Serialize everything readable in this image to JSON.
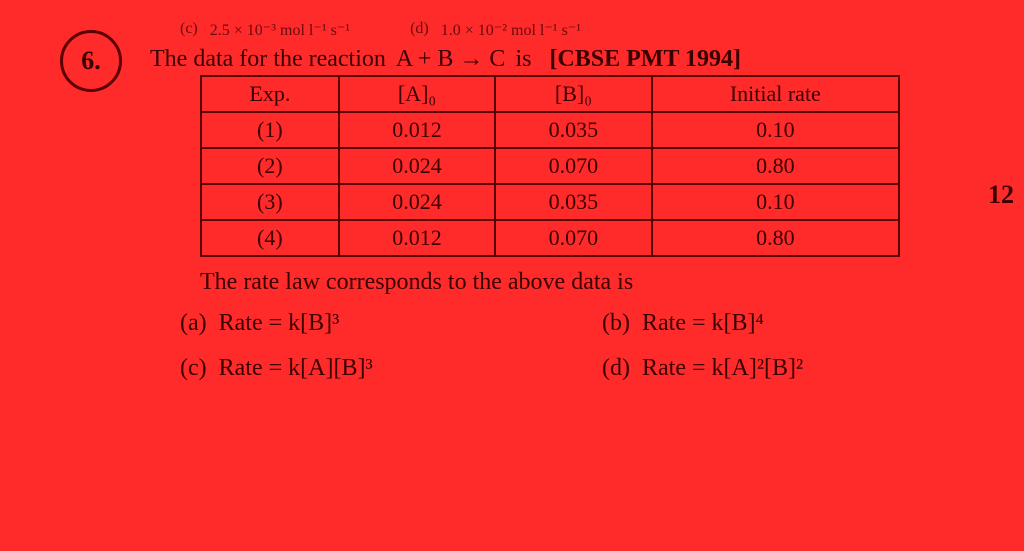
{
  "colors": {
    "tint": "#ff2a2a",
    "ink": "#3a0000",
    "border": "#5a0000"
  },
  "prev_options": {
    "c": {
      "label": "(c)",
      "text": "2.5 × 10⁻³ mol l⁻¹ s⁻¹"
    },
    "d": {
      "label": "(d)",
      "text": "1.0 × 10⁻² mol l⁻¹ s⁻¹"
    }
  },
  "question": {
    "number": "6.",
    "stem_prefix": "The data for the reaction",
    "reaction": "A + B → C",
    "stem_suffix": "is",
    "source": "[CBSE PMT 1994]"
  },
  "table": {
    "headers": [
      "Exp.",
      "[A]₀",
      "[B]₀",
      "Initial rate"
    ],
    "rows": [
      [
        "(1)",
        "0.012",
        "0.035",
        "0.10"
      ],
      [
        "(2)",
        "0.024",
        "0.070",
        "0.80"
      ],
      [
        "(3)",
        "0.024",
        "0.035",
        "0.10"
      ],
      [
        "(4)",
        "0.012",
        "0.070",
        "0.80"
      ]
    ]
  },
  "followup": "The rate law corresponds to the above data is",
  "choices": {
    "a": {
      "label": "(a)",
      "text": "Rate = k[B]³"
    },
    "b": {
      "label": "(b)",
      "text": "Rate = k[B]⁴"
    },
    "c": {
      "label": "(c)",
      "text": "Rate = k[A][B]³"
    },
    "d": {
      "label": "(d)",
      "text": "Rate = k[A]²[B]²"
    }
  },
  "right_margin": "12"
}
